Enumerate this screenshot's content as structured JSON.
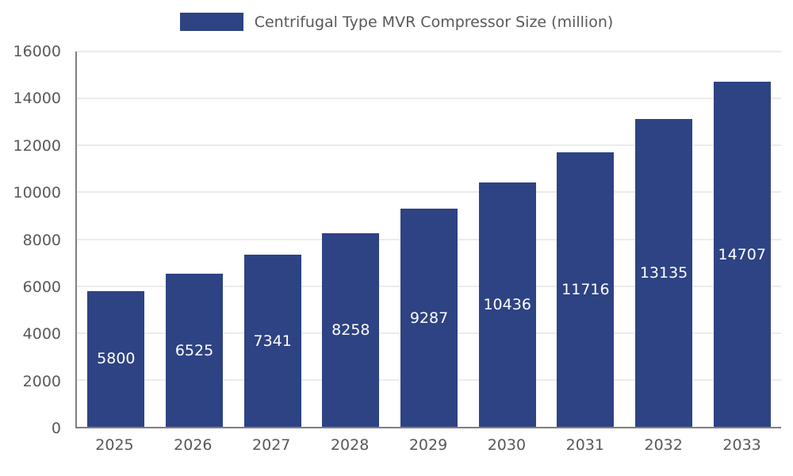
{
  "chart_data": {
    "type": "bar",
    "title": "Centrifugal Type MVR Compressor Size (million)",
    "categories": [
      "2025",
      "2026",
      "2027",
      "2028",
      "2029",
      "2030",
      "2031",
      "2032",
      "2033"
    ],
    "values": [
      5800,
      6525,
      7341,
      8258,
      9287,
      10436,
      11716,
      13135,
      14707
    ],
    "xlabel": "",
    "ylabel": "",
    "ylim": [
      0,
      16000
    ],
    "ytick_step": 2000,
    "grid": true,
    "legend_position": "top-center",
    "colors": {
      "bar": "#2e4383",
      "value_label": "#ffffff",
      "tick_text": "#595959",
      "gridline": "#d9d9d9",
      "axis_line": "#808080",
      "background": "#ffffff"
    }
  }
}
